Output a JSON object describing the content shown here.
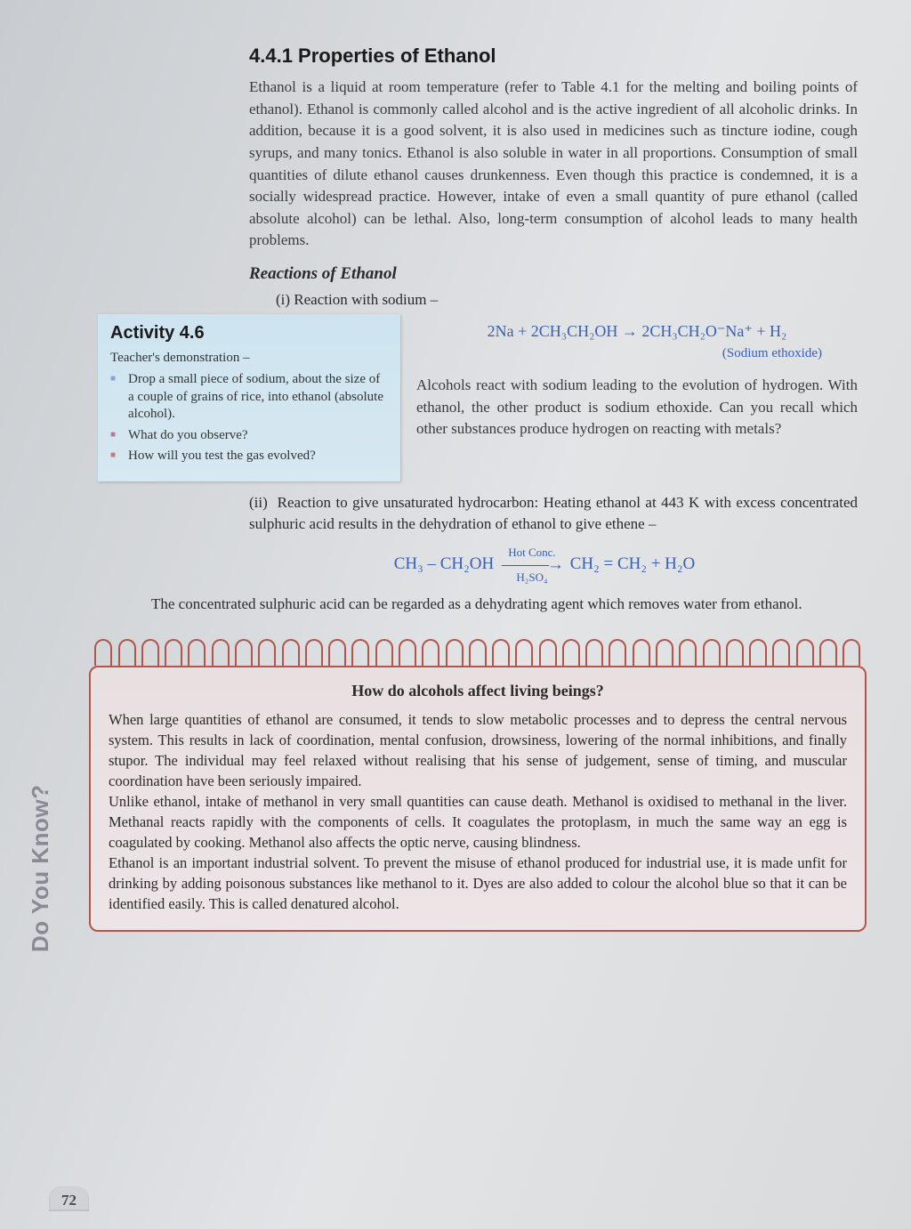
{
  "heading": "4.4.1 Properties of Ethanol",
  "intro_para": "Ethanol is a liquid at room temperature (refer to Table 4.1 for the melting and boiling points of ethanol). Ethanol is commonly called alcohol and is the active ingredient of all alcoholic drinks. In addition, because it is a good solvent, it is also used in medicines such as tincture iodine, cough syrups, and many tonics. Ethanol is also soluble in water in all proportions. Consumption of small quantities of dilute ethanol causes drunkenness. Even though this practice is condemned, it is a socially widespread practice. However, intake of even a small quantity of pure ethanol (called absolute alcohol) can be lethal. Also, long-term consumption of alcohol leads to many health problems.",
  "reactions_heading": "Reactions of Ethanol",
  "reaction_i_label": "(i) Reaction with sodium –",
  "activity": {
    "title": "Activity 4.6",
    "subtitle": "Teacher's demonstration –",
    "bullets": [
      "Drop a small piece of sodium, about the size of a couple of grains of rice, into ethanol (absolute alcohol).",
      "What do you observe?",
      "How will you test the gas evolved?"
    ],
    "bullet_colors": [
      "#8aa5c7",
      "#b77a9a",
      "#c77a7a"
    ],
    "box_bg_top": "#cde4f0",
    "box_bg_bottom": "#d6e8f1"
  },
  "equation1": {
    "lhs": "2Na + 2CH₃CH₂OH",
    "arrow": "→",
    "rhs": "2CH₃CH₂O⁻Na⁺ + H₂",
    "note": "(Sodium ethoxide)",
    "color": "#3a5fb5"
  },
  "alcohols_para": "Alcohols react with sodium leading to the evolution of hydrogen. With ethanol, the other product is sodium ethoxide. Can you recall which other substances produce hydrogen on reacting with metals?",
  "reaction_ii": {
    "label": "(ii)",
    "text": "Reaction to give unsaturated hydrocarbon: Heating ethanol at 443 K with excess concentrated sulphuric acid results in the dehydration of ethanol to give ethene –"
  },
  "equation2": {
    "lhs": "CH₃ – CH₂OH",
    "arrow_top": "Hot Conc.",
    "arrow_bottom": "H₂SO₄",
    "rhs": "CH₂ = CH₂ + H₂O",
    "color": "#3a5fb5"
  },
  "agent_para": "The concentrated sulphuric acid can be regarded as a dehydrating agent which removes water from ethanol.",
  "spiral": {
    "count": 33,
    "color": "#b5544a"
  },
  "dyk": {
    "heading": "How do alcohols affect living beings?",
    "para1": "When large quantities of ethanol are consumed, it tends to slow metabolic processes and to depress the central nervous system. This results in lack of coordination, mental confusion, drowsiness, lowering of the normal inhibitions, and finally stupor. The individual may feel relaxed without realising that his sense of judgement, sense of timing, and muscular coordination have been seriously impaired.",
    "para2": "Unlike ethanol, intake of methanol in very small quantities can cause death. Methanol is oxidised to methanal in the liver. Methanal reacts rapidly with the components of cells. It coagulates the protoplasm, in much the same way an egg is coagulated by cooking. Methanol also affects the optic nerve, causing blindness.",
    "para3": "Ethanol is an important industrial solvent. To prevent the misuse of ethanol produced for industrial use, it is made unfit for drinking by adding poisonous substances like methanol to it. Dyes are also added to colour the alcohol blue so that it can be identified easily. This is called denatured alcohol.",
    "border_color": "#b5544a",
    "bg_color": "#ece4e6"
  },
  "vertical_label": "Do You Know?",
  "page_number": "72",
  "page_bg_gradient": [
    "#c8ccd0",
    "#e2e4e6"
  ]
}
